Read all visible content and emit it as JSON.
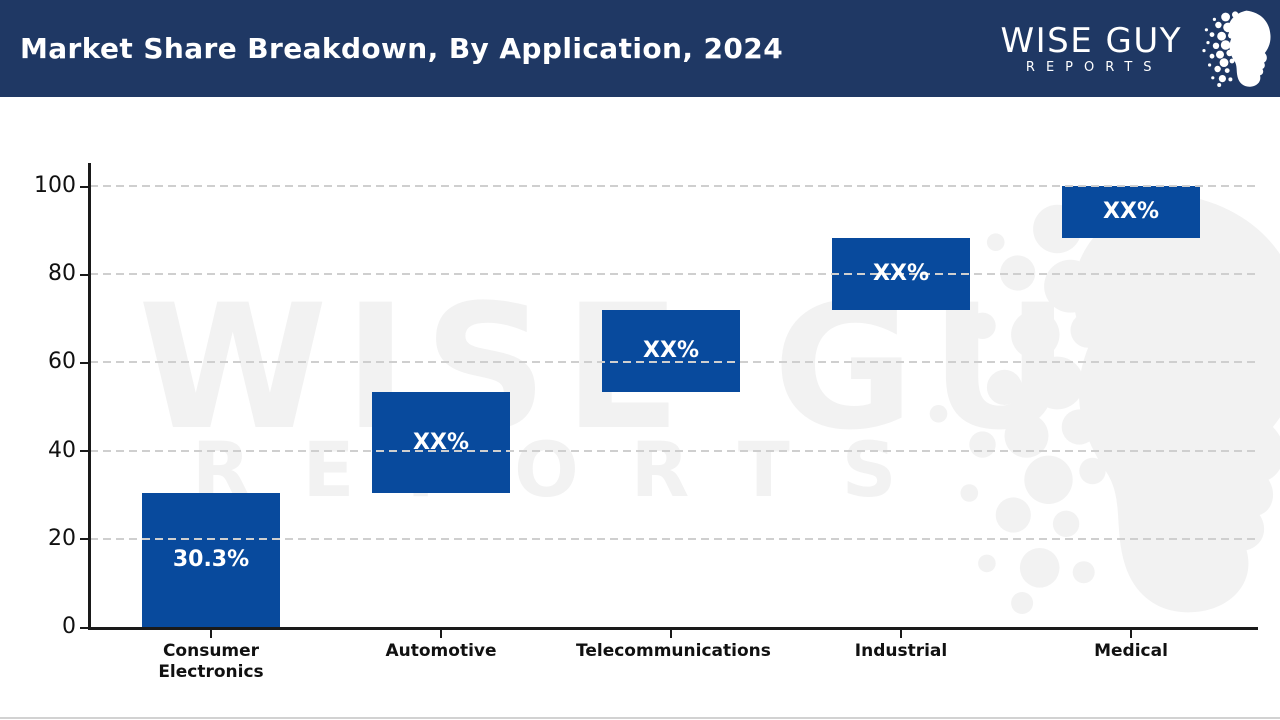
{
  "header": {
    "title": "Market Share Breakdown, By Application, 2024",
    "bg_color": "#1f3864",
    "logo": {
      "line1": "WISE GUY",
      "line2": "REPORTS"
    }
  },
  "watermark": {
    "line1": "WISE GUY",
    "line2": "REPORTS"
  },
  "chart_data": {
    "type": "bar",
    "subtype": "waterfall-floating-bars",
    "title": "Market Share Breakdown, By Application, 2024",
    "categories": [
      "Consumer Electronics",
      "Automotive",
      "Telecommunications",
      "Industrial",
      "Medical"
    ],
    "segments": [
      {
        "category": "Consumer Electronics",
        "start": 0,
        "end": 30.3,
        "label": "30.3%"
      },
      {
        "category": "Automotive",
        "start": 30.3,
        "end": 53.3,
        "label": "XX%"
      },
      {
        "category": "Telecommunications",
        "start": 53.3,
        "end": 71.9,
        "label": "XX%"
      },
      {
        "category": "Industrial",
        "start": 71.9,
        "end": 88.3,
        "label": "XX%"
      },
      {
        "category": "Medical",
        "start": 88.3,
        "end": 100,
        "label": "XX%"
      }
    ],
    "xlabel": "",
    "ylabel": "",
    "ylim": [
      0,
      100
    ],
    "yticks": [
      0,
      20,
      40,
      60,
      80,
      100
    ],
    "grid": {
      "axis": "y",
      "style": "dashed",
      "color": "#cfcfcf"
    },
    "legend": "none",
    "bar_color": "#084a9d",
    "bar_label_color": "#ffffff",
    "axis_color": "#1a1a1a"
  }
}
